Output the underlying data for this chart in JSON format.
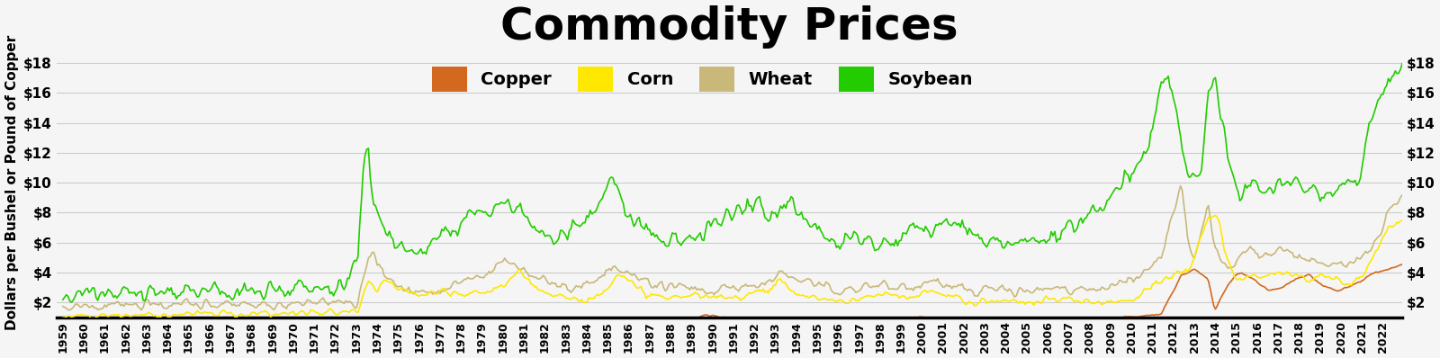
{
  "title": "Commodity Prices",
  "ylabel_left": "Dollars per Bushel or Pound of Copper",
  "ylim": [
    1,
    19
  ],
  "yticks": [
    2,
    4,
    6,
    8,
    10,
    12,
    14,
    16,
    18
  ],
  "ytick_labels": [
    "$2",
    "$4",
    "$6",
    "$8",
    "$10",
    "$12",
    "$14",
    "$16",
    "$18"
  ],
  "colors": {
    "copper": "#D2691E",
    "corn": "#FFE800",
    "wheat": "#C8B87A",
    "soybean": "#22CC00"
  },
  "background": "#F5F5F5",
  "grid_color": "#CCCCCC",
  "title_fontsize": 36,
  "axis_fontsize": 11,
  "tick_fontsize": 11,
  "start_year": 1959,
  "end_year": 2022
}
